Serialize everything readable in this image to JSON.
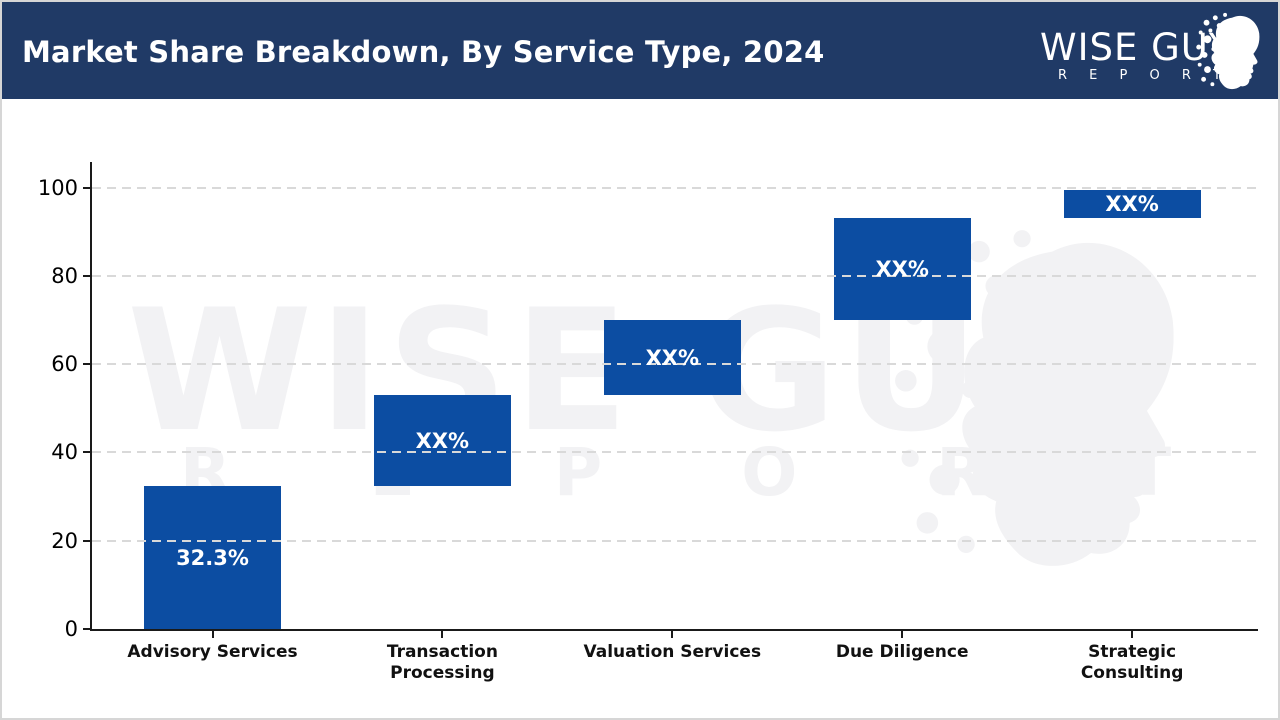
{
  "header": {
    "title": "Market Share Breakdown, By Service Type, 2024",
    "bg_color": "#203a66",
    "logo": {
      "line1": "WISE GUY",
      "line2": "REPORTS"
    }
  },
  "watermark": {
    "line1": "WISE GUY",
    "line2": "REPORTS"
  },
  "chart_data": {
    "type": "bar",
    "variant": "waterfall",
    "title": "Market Share Breakdown, By Service Type, 2024",
    "categories": [
      "Advisory Services",
      "Transaction Processing",
      "Valuation Services",
      "Due Diligence",
      "Strategic Consulting"
    ],
    "category_lines": [
      [
        "Advisory Services"
      ],
      [
        "Transaction",
        "Processing"
      ],
      [
        "Valuation Services"
      ],
      [
        "Due Diligence"
      ],
      [
        "Strategic",
        "Consulting"
      ]
    ],
    "segments": [
      {
        "category": "Advisory Services",
        "start": 0,
        "end": 32.3,
        "label": "32.3%"
      },
      {
        "category": "Transaction Processing",
        "start": 32.3,
        "end": 53,
        "label": "XX%"
      },
      {
        "category": "Valuation Services",
        "start": 53,
        "end": 70,
        "label": "XX%"
      },
      {
        "category": "Due Diligence",
        "start": 70,
        "end": 93,
        "label": "XX%"
      },
      {
        "category": "Strategic Consulting",
        "start": 93,
        "end": 99.5,
        "label": "XX%"
      }
    ],
    "ylim": [
      0,
      100
    ],
    "yticks": [
      0,
      20,
      40,
      60,
      80,
      100
    ],
    "xlabel": "",
    "ylabel": "",
    "grid": "horizontal-dashed",
    "legend": "none",
    "bar_color": "#0c4da2",
    "bar_label_color": "#ffffff"
  }
}
